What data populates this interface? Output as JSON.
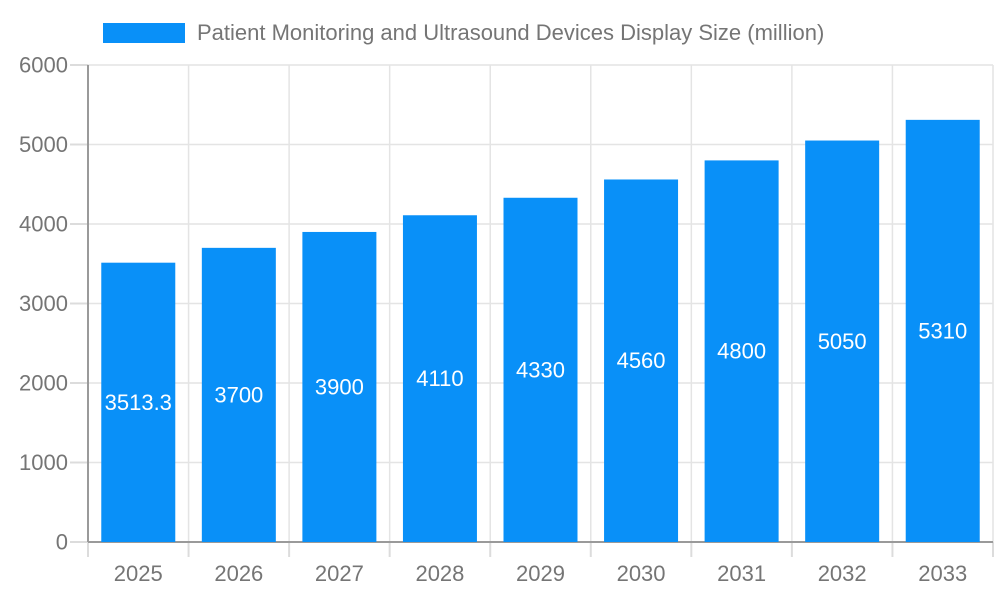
{
  "legend": {
    "label": "Patient Monitoring and Ultrasound Devices Display Size (million)"
  },
  "chart_data": {
    "type": "bar",
    "title": "",
    "xlabel": "",
    "ylabel": "",
    "categories": [
      "2025",
      "2026",
      "2027",
      "2028",
      "2029",
      "2030",
      "2031",
      "2032",
      "2033"
    ],
    "values": [
      3513.3,
      3700,
      3900,
      4110,
      4330,
      4560,
      4800,
      5050,
      5310
    ],
    "series_name": "Patient Monitoring and Ultrasound Devices Display Size (million)",
    "ylim": [
      0,
      6000
    ],
    "yticks": [
      0,
      1000,
      2000,
      3000,
      4000,
      5000,
      6000
    ],
    "grid": true,
    "legend_position": "top-left",
    "bar_color": "#0990f8",
    "bar_label_color": "#ffffff",
    "axis_text_color": "#757575",
    "grid_color": "#e4e4e4",
    "tick_color": "#dcdcdc",
    "axis_line_color": "#9a9a9a"
  }
}
